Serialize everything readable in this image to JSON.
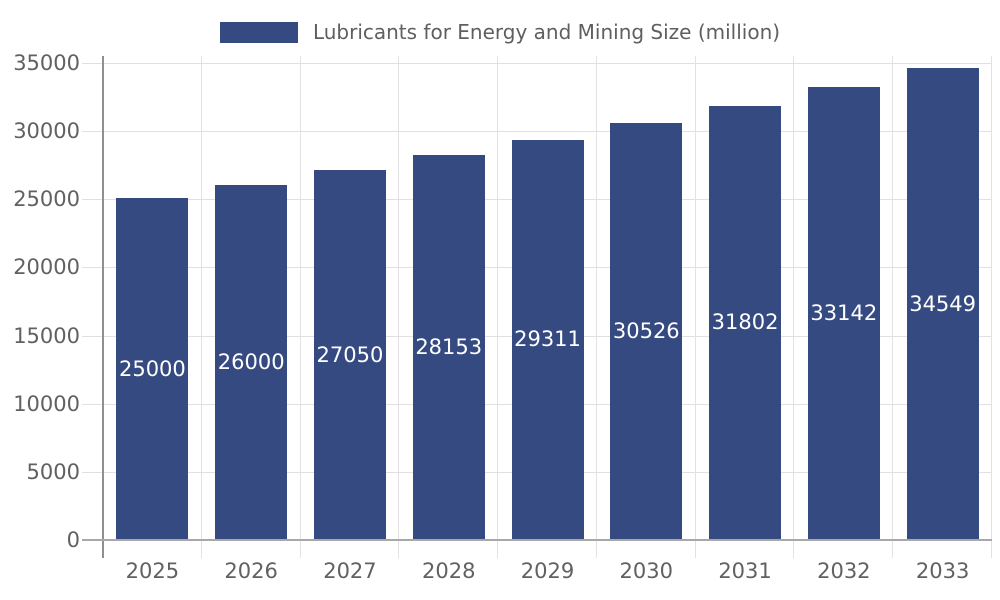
{
  "legend": {
    "label": "Lubricants for Energy and Mining Size (million)"
  },
  "chart_data": {
    "type": "bar",
    "title": "",
    "categories": [
      "2025",
      "2026",
      "2027",
      "2028",
      "2029",
      "2030",
      "2031",
      "2032",
      "2033"
    ],
    "series": [
      {
        "name": "Lubricants for Energy and Mining Size (million)",
        "values": [
          25000,
          26000,
          27050,
          28153,
          29311,
          30526,
          31802,
          33142,
          34549
        ]
      }
    ],
    "xlabel": "",
    "ylabel": "",
    "ylim": [
      0,
      35000
    ],
    "yticks": [
      0,
      5000,
      10000,
      15000,
      20000,
      25000,
      30000,
      35000
    ],
    "grid": true,
    "legend_position": "top",
    "bar_value_labels_inside": true
  },
  "colors": {
    "bar": "#364A82",
    "hgrid": "#e0e0e0",
    "vgrid": "#e2e2e5",
    "y_axis_line": "#8f8f8f",
    "x_axis_line": "#a8a8a8",
    "tick_text": "#616161",
    "legend_text": "#5f5f5f",
    "bar_label_text": "#ffffff"
  }
}
